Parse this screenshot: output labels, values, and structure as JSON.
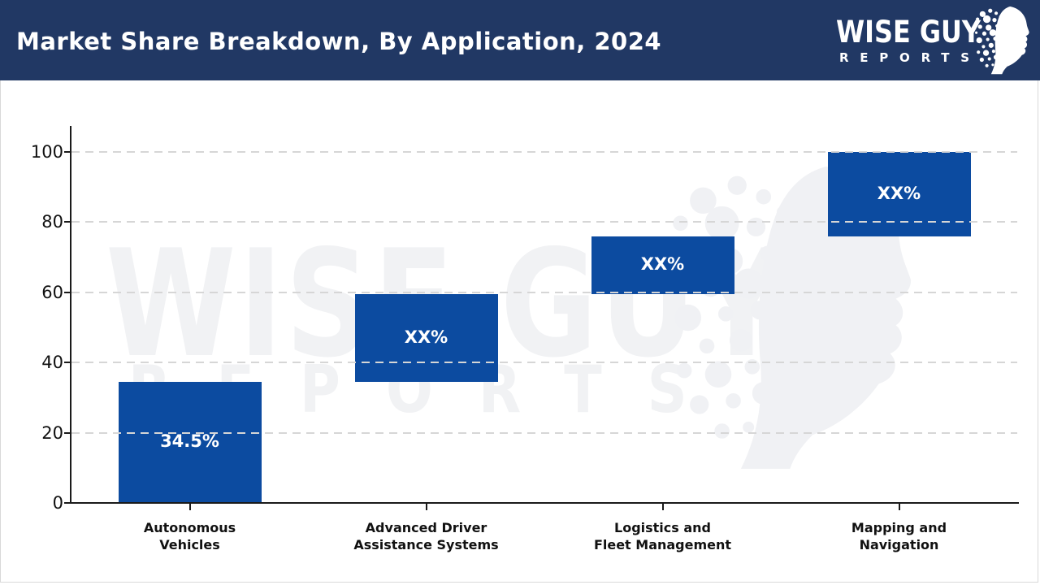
{
  "header": {
    "title": "Market Share Breakdown, By Application, 2024",
    "logo": {
      "brand": "WISE GUY",
      "sub": "REPORTS"
    }
  },
  "watermark": {
    "brand": "WISE GUY",
    "sub": "REPORTS"
  },
  "colors": {
    "header_bg": "#213864",
    "bar": "#0c4ba0",
    "grid": "#d6d6d6",
    "axis": "#1a1a1a",
    "bar_label": "#ffffff",
    "watermark": "#f1f2f4",
    "border": "#d9d9d9"
  },
  "chart_data": {
    "type": "bar",
    "variant": "waterfall",
    "title": "Market Share Breakdown, By Application, 2024",
    "categories": [
      [
        "Autonomous",
        "Vehicles"
      ],
      [
        "Advanced Driver",
        "Assistance Systems"
      ],
      [
        "Logistics and",
        "Fleet Management"
      ],
      [
        "Mapping and",
        "Navigation"
      ]
    ],
    "series": [
      {
        "name": "Market Share",
        "segments": [
          {
            "start": 0,
            "end": 34.5,
            "label": "34.5%"
          },
          {
            "start": 34.5,
            "end": 59.5,
            "label": "XX%"
          },
          {
            "start": 59.5,
            "end": 76,
            "label": "XX%"
          },
          {
            "start": 76,
            "end": 100,
            "label": "XX%"
          }
        ]
      }
    ],
    "xlabel": "",
    "ylabel": "",
    "ylim": [
      0,
      100
    ],
    "yticks": [
      0,
      20,
      40,
      60,
      80,
      100
    ],
    "grid": {
      "horizontal": true,
      "style": "dashed",
      "drawn_over_bars": true
    },
    "legend": "none"
  }
}
